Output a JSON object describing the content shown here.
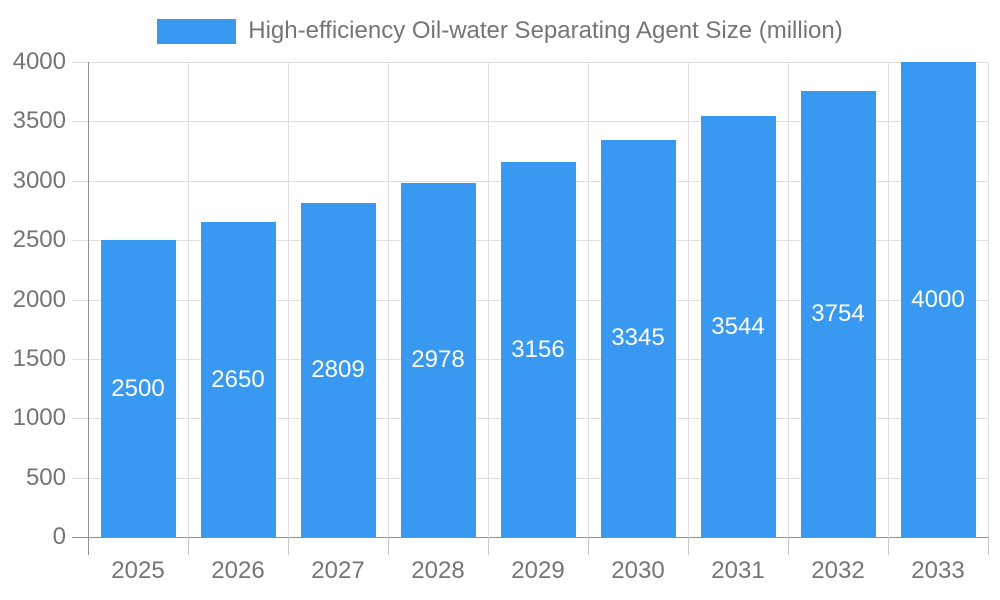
{
  "chart_data": {
    "type": "bar",
    "title": "High-efficiency Oil-water Separating Agent Size (million)",
    "categories": [
      "2025",
      "2026",
      "2027",
      "2028",
      "2029",
      "2030",
      "2031",
      "2032",
      "2033"
    ],
    "values": [
      2500,
      2650,
      2809,
      2978,
      3156,
      3345,
      3544,
      3754,
      4000
    ],
    "xlabel": "",
    "ylabel": "",
    "ylim": [
      0,
      4000
    ],
    "yticks": [
      0,
      500,
      1000,
      1500,
      2000,
      2500,
      3000,
      3500,
      4000
    ],
    "grid": true,
    "legend_position": "top-center",
    "value_labels": "inside-center"
  },
  "legend": {
    "label": "High-efficiency Oil-water Separating Agent Size (million)"
  },
  "colors": {
    "bar": "#3999f0",
    "grid": "#e0e0e0",
    "axis": "#909090",
    "tick": "#c8c8c8",
    "text": "#757575",
    "value_label": "#ffffff",
    "background": "#ffffff"
  }
}
